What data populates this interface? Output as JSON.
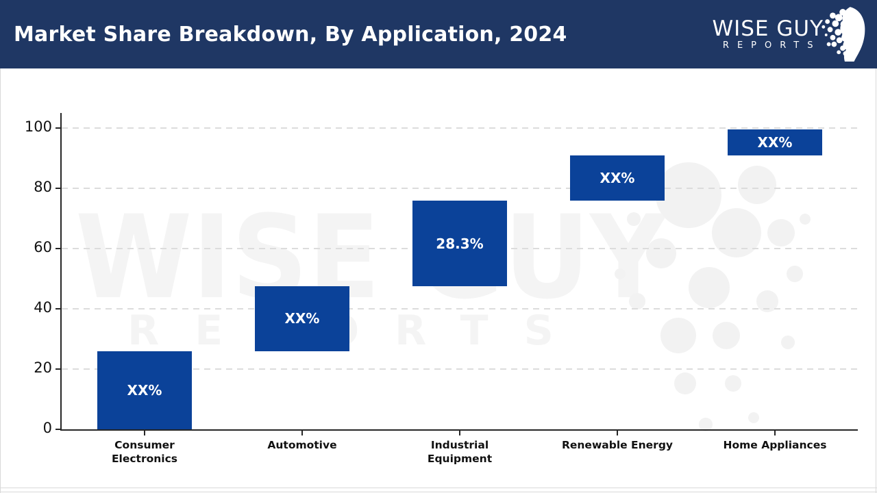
{
  "header": {
    "title": "Market Share Breakdown, By Application, 2024",
    "bg_color": "#1f3764",
    "logo": {
      "line1": "WISE GUY",
      "line2": "REPORTS"
    }
  },
  "frame": {
    "border_color": "#d9d9d9"
  },
  "watermark": {
    "line1": "WISE GUY",
    "line2": "REPORTS"
  },
  "chart_data": {
    "type": "bar",
    "subtype": "floating-waterfall",
    "title": "Market Share Breakdown, By Application, 2024",
    "categories": [
      "Consumer Electronics",
      "Automotive",
      "Industrial Equipment",
      "Renewable Energy",
      "Home Appliances"
    ],
    "series": [
      {
        "name": "Market share (%)",
        "segments": [
          {
            "category": "Consumer Electronics",
            "start": 0,
            "end": 26,
            "label": "XX%"
          },
          {
            "category": "Automotive",
            "start": 26,
            "end": 47.5,
            "label": "XX%"
          },
          {
            "category": "Industrial Equipment",
            "start": 47.5,
            "end": 75.8,
            "label": "28.3%"
          },
          {
            "category": "Renewable Energy",
            "start": 75.8,
            "end": 91,
            "label": "XX%"
          },
          {
            "category": "Home Appliances",
            "start": 91,
            "end": 99.6,
            "label": "XX%"
          }
        ]
      }
    ],
    "xlabel": "",
    "ylabel": "",
    "ylim": [
      0,
      105
    ],
    "yticks": [
      0,
      20,
      40,
      60,
      80,
      100
    ],
    "grid": "horizontal-dashed",
    "legend": "none",
    "bar_color": "#0b4299",
    "bar_label_color": "#ffffff",
    "axis_color": "#262626",
    "tick_label_color": "#111111",
    "grid_color": "#dcdcdc"
  }
}
